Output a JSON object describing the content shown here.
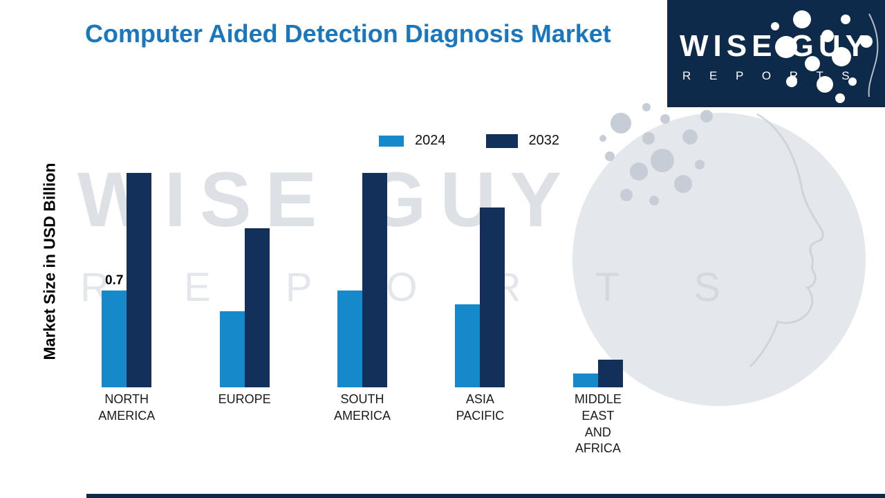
{
  "header": {
    "title": "Computer Aided Detection Diagnosis Market",
    "title_color": "#1b77bd"
  },
  "brand": {
    "name_line": "WISE GUY",
    "reports_line": "R E P O R T S",
    "bg_color": "#0d2a4a"
  },
  "watermark": {
    "line1": "WISE GUY",
    "line2": "R E P O R T S"
  },
  "chart_data": {
    "type": "bar",
    "title": "Computer Aided Detection Diagnosis Market",
    "ylabel": "Market Size in USD Billion",
    "xlabel": "",
    "unit": "USD Billion",
    "categories": [
      "NORTH AMERICA",
      "EUROPE",
      "SOUTH AMERICA",
      "ASIA PACIFIC",
      "MIDDLE EAST AND AFRICA"
    ],
    "categories_lines": [
      [
        "NORTH",
        "AMERICA"
      ],
      [
        "EUROPE"
      ],
      [
        "SOUTH",
        "AMERICA"
      ],
      [
        "ASIA",
        "PACIFIC"
      ],
      [
        "MIDDLE",
        "EAST",
        "AND",
        "AFRICA"
      ]
    ],
    "series": [
      {
        "name": "2024",
        "color": "#1689cb",
        "values": [
          0.7,
          0.55,
          0.7,
          0.6,
          0.1
        ]
      },
      {
        "name": "2032",
        "color": "#13305b",
        "values": [
          1.55,
          1.15,
          1.55,
          1.3,
          0.2
        ]
      }
    ],
    "annotations": [
      {
        "series": "2024",
        "category_index": 0,
        "text": "0.7"
      }
    ],
    "ylim": [
      0,
      1.65
    ],
    "grid": false,
    "legend_position": "top-right"
  }
}
